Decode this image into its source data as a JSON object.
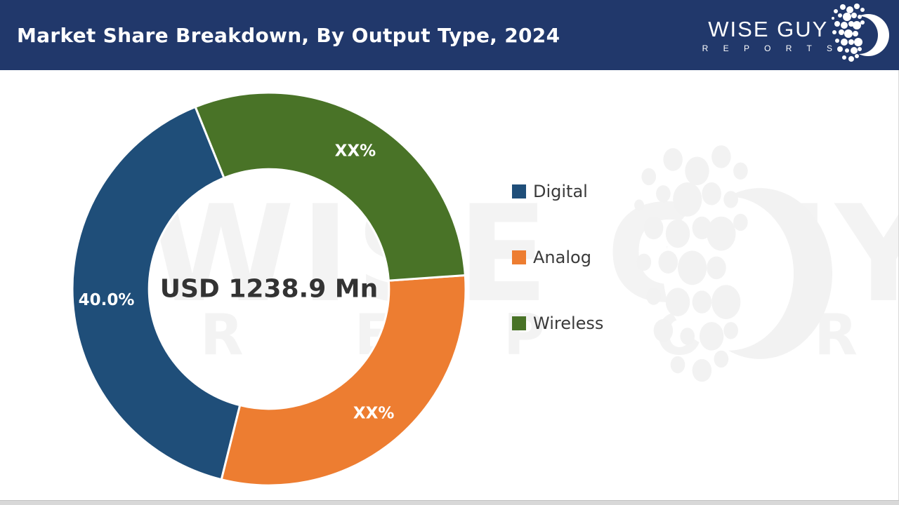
{
  "header": {
    "title": "Market Share Breakdown, By Output Type, 2024",
    "background_color": "#21386B",
    "logo": {
      "line1": "WISE GUY",
      "line2": "R E P O R T S"
    }
  },
  "chart_data": {
    "type": "pie",
    "subtype": "donut",
    "title": "Market Share Breakdown, By Output Type, 2024",
    "center_label": "USD 1238.9 Mn",
    "start_angle": 112,
    "direction": "counterclockwise",
    "donut_hole_ratio": 0.61,
    "slice_border_color": "#FFFFFF",
    "legend_position": "right",
    "slices": [
      {
        "label": "Digital",
        "value_pct": 40.0,
        "display_label": "40.0%",
        "color": "#1F4E79"
      },
      {
        "label": "Analog",
        "value_pct": 30.0,
        "display_label": "XX%",
        "color": "#ED7D31"
      },
      {
        "label": "Wireless",
        "value_pct": 30.0,
        "display_label": "XX%",
        "color": "#497327"
      }
    ],
    "watermark": {
      "line1": "WISE GUY",
      "line2": "R E P O R T S"
    }
  }
}
